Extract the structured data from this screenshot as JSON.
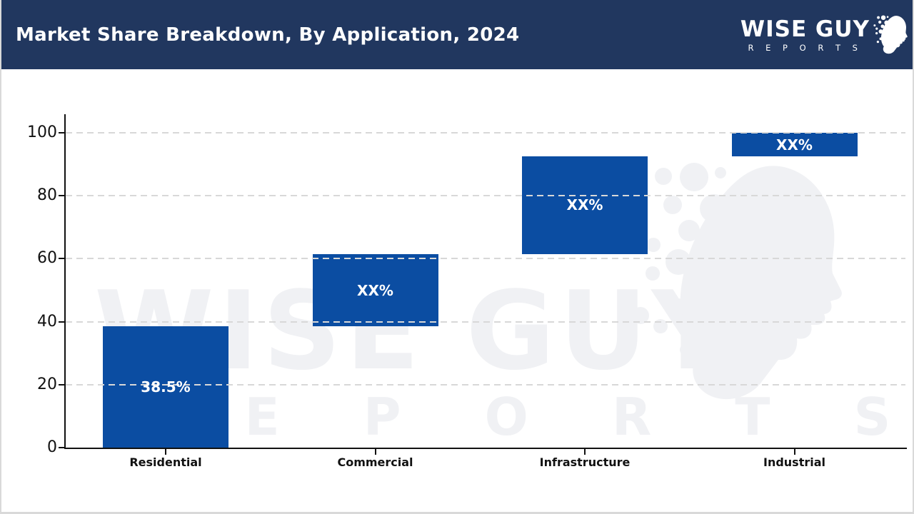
{
  "header": {
    "title": "Market Share Breakdown, By Application, 2024",
    "bg_color": "#21375F",
    "logo": {
      "line1": "WISE GUY",
      "line2": "R E P O R T S"
    }
  },
  "watermark": {
    "line1": "WISE GUY",
    "line2": "R E P O R T S"
  },
  "chart_data": {
    "type": "bar",
    "subtype": "floating-waterfall-columns",
    "title": "Market Share Breakdown, By Application, 2024",
    "categories": [
      "Residential",
      "Commercial",
      "Infrastructure",
      "Industrial"
    ],
    "bars": [
      {
        "category": "Residential",
        "start": 0,
        "end": 38.5,
        "label": "38.5%"
      },
      {
        "category": "Commercial",
        "start": 38.5,
        "end": 61.5,
        "label": "XX%"
      },
      {
        "category": "Infrastructure",
        "start": 61.5,
        "end": 92.5,
        "label": "XX%"
      },
      {
        "category": "Industrial",
        "start": 92.5,
        "end": 100,
        "label": "XX%"
      }
    ],
    "bar_color": "#0B4DA2",
    "bar_label_color": "#FFFFFF",
    "ylim": [
      0,
      100
    ],
    "yticks": [
      0,
      20,
      40,
      60,
      80,
      100
    ],
    "grid": {
      "axis": "y",
      "style": "dashed",
      "color": "#D8D8D8"
    },
    "legend": "none",
    "xlabel": "",
    "ylabel": ""
  }
}
